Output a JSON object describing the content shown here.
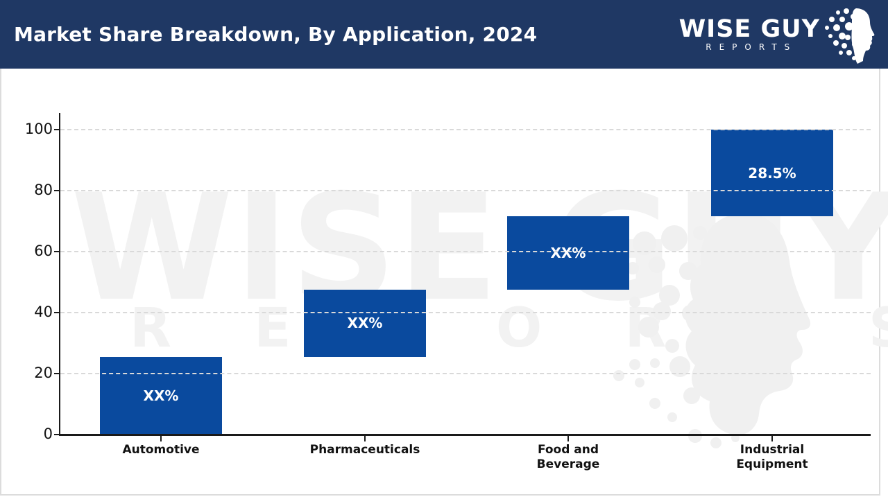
{
  "header": {
    "title": "Market Share Breakdown, By Application, 2024",
    "logo": {
      "line1": "WISE GUY",
      "line2": "REPORTS"
    }
  },
  "watermark": {
    "line1": "WISE GUY",
    "line2": "REPORTS"
  },
  "colors": {
    "header_bg": "#1f3864",
    "bar": "#0a4a9e",
    "bar_label": "#ffffff",
    "grid": "#d9d9d9",
    "axis": "#1a1a1a",
    "watermark": "#f2f2f2"
  },
  "chart_data": {
    "type": "bar",
    "subtype": "floating-waterfall",
    "title": "Market Share Breakdown, By Application, 2024",
    "categories": [
      "Automotive",
      "Pharmaceuticals",
      "Food and Beverage",
      "Industrial Equipment"
    ],
    "segments": [
      {
        "category": "Automotive",
        "start": 0,
        "end": 25.5,
        "label": "XX%"
      },
      {
        "category": "Pharmaceuticals",
        "start": 25.5,
        "end": 47.5,
        "label": "XX%"
      },
      {
        "category": "Food and Beverage",
        "start": 47.5,
        "end": 71.5,
        "label": "XX%"
      },
      {
        "category": "Industrial Equipment",
        "start": 71.5,
        "end": 100,
        "label": "28.5%"
      }
    ],
    "yticks": [
      0,
      20,
      40,
      60,
      80,
      100
    ],
    "ylim": [
      0,
      105
    ],
    "xlabel": "",
    "ylabel": "",
    "grid": "horizontal-dashed",
    "grid_above_bars": true,
    "legend": "none"
  }
}
